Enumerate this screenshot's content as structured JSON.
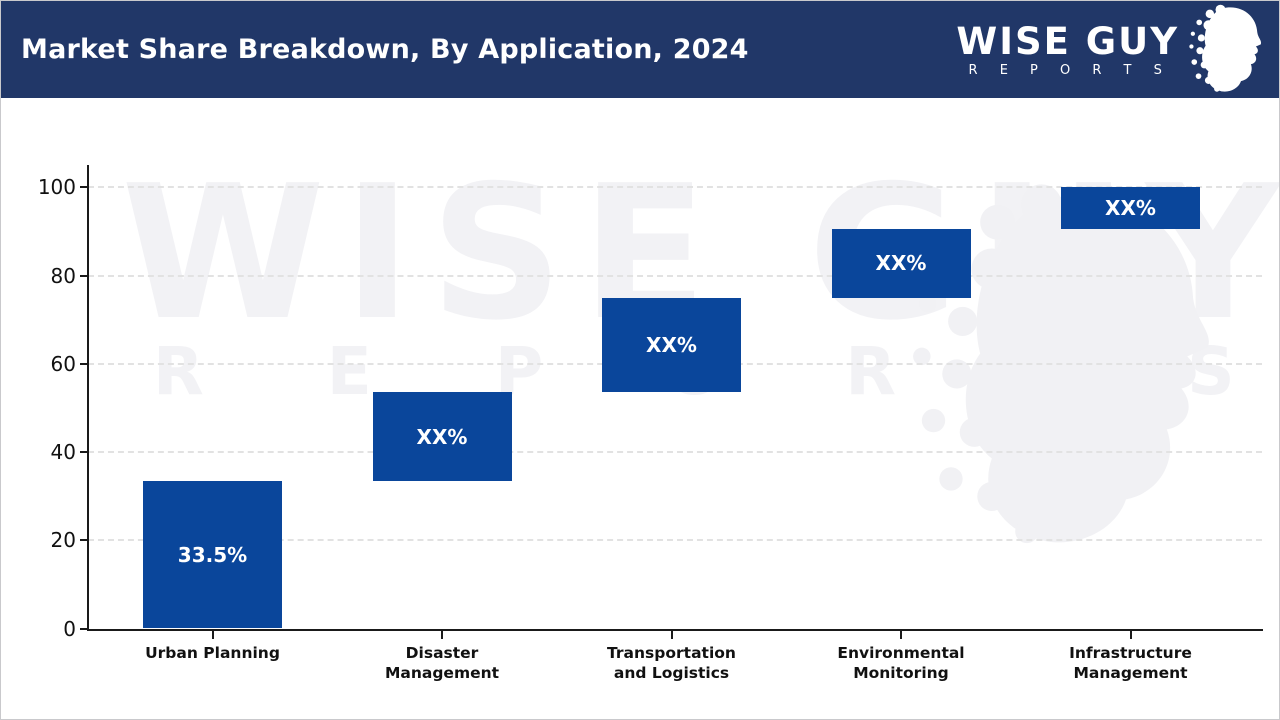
{
  "header": {
    "title": "Market Share Breakdown, By Application, 2024",
    "background_color": "#213768",
    "text_color": "#ffffff",
    "logo": {
      "line1": "WISE GUY",
      "line2": "R E P O R T S"
    }
  },
  "watermark": {
    "line1": "WISE GUY",
    "line2": "R E P O R T S"
  },
  "chart_data": {
    "type": "bar",
    "subtype": "waterfall",
    "title": "Market Share Breakdown, By Application, 2024",
    "categories": [
      "Urban Planning",
      "Disaster Management",
      "Transportation and Logistics",
      "Environmental Monitoring",
      "Infrastructure Management"
    ],
    "series": [
      {
        "name": "Market Share %",
        "segments": [
          {
            "start": 0,
            "end": 33.5,
            "label": "33.5%"
          },
          {
            "start": 33.5,
            "end": 53.5,
            "label": "XX%"
          },
          {
            "start": 53.5,
            "end": 75,
            "label": "XX%"
          },
          {
            "start": 75,
            "end": 90.5,
            "label": "XX%"
          },
          {
            "start": 90.5,
            "end": 100,
            "label": "XX%"
          }
        ]
      }
    ],
    "xlabel": "",
    "ylabel": "",
    "ylim": [
      0,
      105
    ],
    "yticks": [
      0,
      20,
      40,
      60,
      80,
      100
    ],
    "grid": "horizontal-dashed",
    "legend": "none",
    "bar_color": "#0a469b",
    "bar_label_color": "#ffffff",
    "axis_color": "#1a1a1a",
    "gridline_color": "#e2e2e2"
  }
}
